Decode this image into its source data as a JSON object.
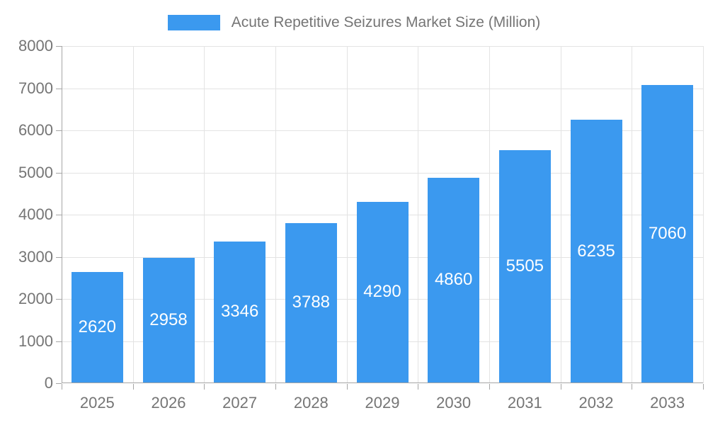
{
  "legend": {
    "label": "Acute Repetitive Seizures Market Size (Million)"
  },
  "chart_data": {
    "type": "bar",
    "title": "Acute Repetitive Seizures Market Size (Million)",
    "categories": [
      "2025",
      "2026",
      "2027",
      "2028",
      "2029",
      "2030",
      "2031",
      "2032",
      "2033"
    ],
    "values": [
      2620,
      2958,
      3346,
      3788,
      4290,
      4860,
      5505,
      6235,
      7060
    ],
    "xlabel": "",
    "ylabel": "",
    "ylim": [
      0,
      8000
    ],
    "yticks": [
      0,
      1000,
      2000,
      3000,
      4000,
      5000,
      6000,
      7000,
      8000
    ],
    "grid": true,
    "legend_position": "top-center",
    "value_labels": "inside-center",
    "colors": {
      "bar": "#3b99ef",
      "value_label": "#ffffff",
      "axis_text": "#757575",
      "grid_line": "#e3e3e3",
      "axis_line": "#a6a6a6",
      "background": "#ffffff"
    }
  }
}
